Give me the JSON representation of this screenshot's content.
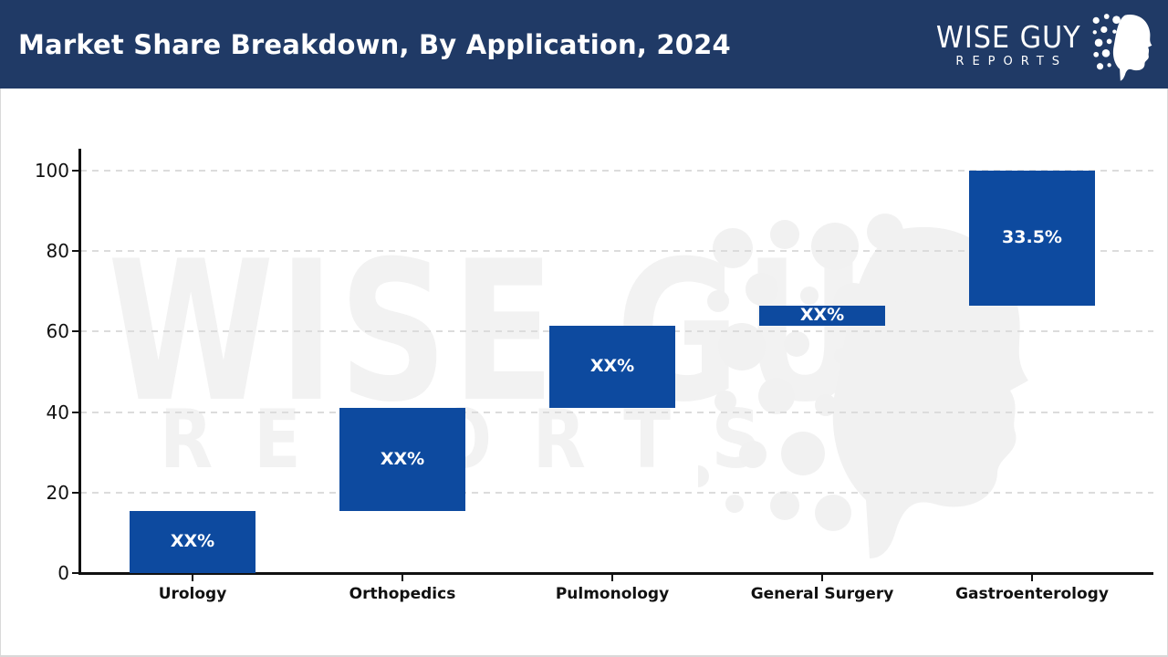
{
  "header": {
    "title": "Market Share Breakdown, By Application, 2024",
    "bg_color": "#203a66",
    "logo": {
      "line1": "WISE GUY",
      "line2": "REPORTS"
    }
  },
  "watermark": {
    "line1": "WISE GUY",
    "line2": "REPORTS"
  },
  "chart_data": {
    "type": "bar",
    "variant": "floating-segment-waterfall",
    "title": "Market Share Breakdown, By Application, 2024",
    "categories": [
      "Urology",
      "Orthopedics",
      "Pulmonology",
      "General Surgery",
      "Gastroenterology"
    ],
    "segments": [
      {
        "category": "Urology",
        "start": 0,
        "end": 15.5,
        "label": "XX%"
      },
      {
        "category": "Orthopedics",
        "start": 15.5,
        "end": 41,
        "label": "XX%"
      },
      {
        "category": "Pulmonology",
        "start": 41,
        "end": 61.5,
        "label": "XX%"
      },
      {
        "category": "General Surgery",
        "start": 61.5,
        "end": 66.5,
        "label": "XX%"
      },
      {
        "category": "Gastroenterology",
        "start": 66.5,
        "end": 100,
        "label": "33.5%"
      }
    ],
    "xlabel": "",
    "ylabel": "",
    "ylim": [
      0,
      100
    ],
    "yticks": [
      0,
      20,
      40,
      60,
      80,
      100
    ],
    "grid": "horizontal-dashed",
    "legend": false,
    "bar_color": "#0d4a9f",
    "bar_label_color": "#ffffff",
    "axis_color": "#111111",
    "gridline_color": "#dcdcdc"
  }
}
